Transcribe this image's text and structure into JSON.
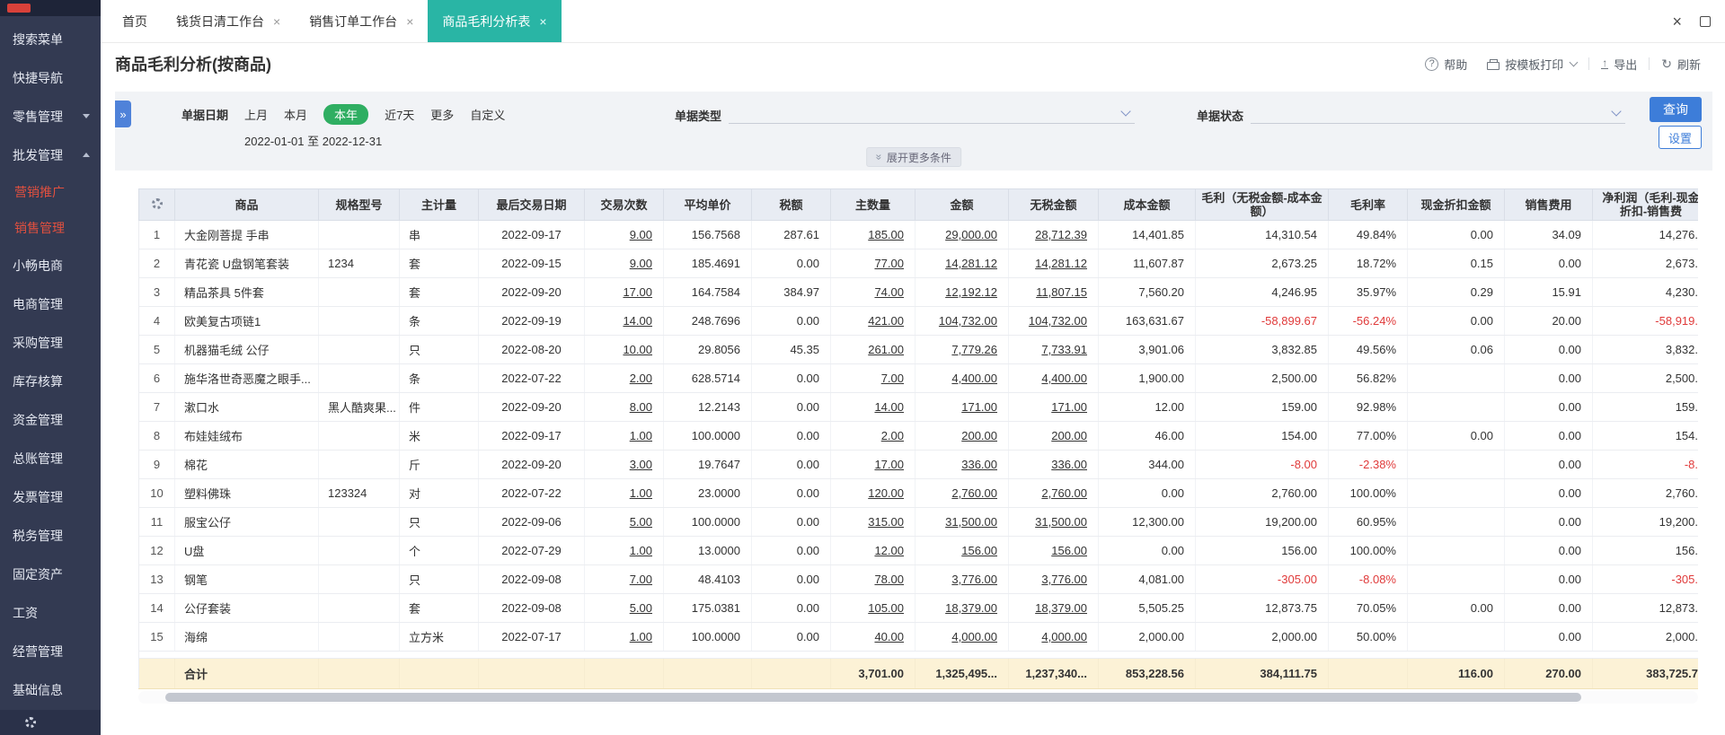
{
  "colors": {
    "accent_teal": "#29b5a5",
    "accent_blue": "#3d7dd9",
    "accent_green": "#2fae62",
    "negative_red": "#e03a3a",
    "sidebar_bg": "#333a52",
    "sidebar_highlight": "#e2503f",
    "summary_row_bg": "#fcf2d6",
    "header_row_bg": "#e8ecf3"
  },
  "icons": {
    "help": "?",
    "close": "×",
    "collapse": "»",
    "expand_more": "»",
    "export": "↑",
    "refresh": "↻"
  },
  "sidebar": {
    "items": [
      {
        "label": "搜索菜单",
        "type": "item"
      },
      {
        "label": "快捷导航",
        "type": "item"
      },
      {
        "label": "零售管理",
        "type": "group",
        "arrow": "down"
      },
      {
        "label": "批发管理",
        "type": "group",
        "arrow": "up"
      },
      {
        "label": "营销推广",
        "type": "sub"
      },
      {
        "label": "销售管理",
        "type": "sub"
      },
      {
        "label": "小畅电商",
        "type": "item"
      },
      {
        "label": "电商管理",
        "type": "item"
      },
      {
        "label": "采购管理",
        "type": "item"
      },
      {
        "label": "库存核算",
        "type": "item"
      },
      {
        "label": "资金管理",
        "type": "item"
      },
      {
        "label": "总账管理",
        "type": "item"
      },
      {
        "label": "发票管理",
        "type": "item"
      },
      {
        "label": "税务管理",
        "type": "item"
      },
      {
        "label": "固定资产",
        "type": "item"
      },
      {
        "label": "工资",
        "type": "item"
      },
      {
        "label": "经营管理",
        "type": "item"
      },
      {
        "label": "基础信息",
        "type": "item"
      }
    ]
  },
  "tabs": [
    {
      "label": "首页",
      "closable": false,
      "active": false
    },
    {
      "label": "钱货日清工作台",
      "closable": true,
      "active": false
    },
    {
      "label": "销售订单工作台",
      "closable": true,
      "active": false
    },
    {
      "label": "商品毛利分析表",
      "closable": true,
      "active": true
    }
  ],
  "page": {
    "title": "商品毛利分析(按商品)",
    "actions": [
      {
        "label": "帮助",
        "icon": "help"
      },
      {
        "label": "按模板打印",
        "icon": "print",
        "caret": true
      },
      {
        "label": "导出",
        "icon": "export"
      },
      {
        "label": "刷新",
        "icon": "refresh"
      }
    ]
  },
  "filters": {
    "date_label": "单据日期",
    "date_options": [
      "上月",
      "本月",
      "本年",
      "近7天",
      "更多",
      "自定义"
    ],
    "date_selected": "本年",
    "date_range": "2022-01-01 至 2022-12-31",
    "type_label": "单据类型",
    "status_label": "单据状态",
    "query_button": "查询",
    "settings_button": "设置",
    "expand_more": "展开更多条件"
  },
  "table": {
    "columns": [
      "商品",
      "规格型号",
      "主计量",
      "最后交易日期",
      "交易次数",
      "平均单价",
      "税额",
      "主数量",
      "金额",
      "无税金额",
      "成本金额",
      "毛利（无税金额-成本金额）",
      "毛利率",
      "现金折扣金额",
      "销售费用",
      "净利润（毛利-现金折扣-销售费"
    ],
    "rows": [
      [
        "1",
        "大金刚菩提 手串",
        "",
        "串",
        "2022-09-17",
        "9.00",
        "156.7568",
        "287.61",
        "185.00",
        "29,000.00",
        "28,712.39",
        "14,401.85",
        "14,310.54",
        "49.84%",
        "0.00",
        "34.09",
        "14,276."
      ],
      [
        "2",
        "青花瓷 U盘钢笔套装",
        "1234",
        "套",
        "2022-09-15",
        "9.00",
        "185.4691",
        "0.00",
        "77.00",
        "14,281.12",
        "14,281.12",
        "11,607.87",
        "2,673.25",
        "18.72%",
        "0.15",
        "0.00",
        "2,673."
      ],
      [
        "3",
        "精品茶具 5件套",
        "",
        "套",
        "2022-09-20",
        "17.00",
        "164.7584",
        "384.97",
        "74.00",
        "12,192.12",
        "11,807.15",
        "7,560.20",
        "4,246.95",
        "35.97%",
        "0.29",
        "15.91",
        "4,230."
      ],
      [
        "4",
        "欧美复古项链1",
        "",
        "条",
        "2022-09-19",
        "14.00",
        "248.7696",
        "0.00",
        "421.00",
        "104,732.00",
        "104,732.00",
        "163,631.67",
        "-58,899.67",
        "-56.24%",
        "0.00",
        "20.00",
        "-58,919."
      ],
      [
        "5",
        "机器猫毛绒 公仔",
        "",
        "只",
        "2022-08-20",
        "10.00",
        "29.8056",
        "45.35",
        "261.00",
        "7,779.26",
        "7,733.91",
        "3,901.06",
        "3,832.85",
        "49.56%",
        "0.06",
        "0.00",
        "3,832."
      ],
      [
        "6",
        "施华洛世奇恶魔之眼手...",
        "",
        "条",
        "2022-07-22",
        "2.00",
        "628.5714",
        "0.00",
        "7.00",
        "4,400.00",
        "4,400.00",
        "1,900.00",
        "2,500.00",
        "56.82%",
        "",
        "0.00",
        "2,500."
      ],
      [
        "7",
        "漱口水",
        "黑人酷爽果...",
        "件",
        "2022-09-20",
        "8.00",
        "12.2143",
        "0.00",
        "14.00",
        "171.00",
        "171.00",
        "12.00",
        "159.00",
        "92.98%",
        "",
        "0.00",
        "159."
      ],
      [
        "8",
        "布娃娃绒布",
        "",
        "米",
        "2022-09-17",
        "1.00",
        "100.0000",
        "0.00",
        "2.00",
        "200.00",
        "200.00",
        "46.00",
        "154.00",
        "77.00%",
        "0.00",
        "0.00",
        "154."
      ],
      [
        "9",
        "棉花",
        "",
        "斤",
        "2022-09-20",
        "3.00",
        "19.7647",
        "0.00",
        "17.00",
        "336.00",
        "336.00",
        "344.00",
        "-8.00",
        "-2.38%",
        "",
        "0.00",
        "-8."
      ],
      [
        "10",
        "塑料佛珠",
        "123324",
        "对",
        "2022-07-22",
        "1.00",
        "23.0000",
        "0.00",
        "120.00",
        "2,760.00",
        "2,760.00",
        "0.00",
        "2,760.00",
        "100.00%",
        "",
        "0.00",
        "2,760."
      ],
      [
        "11",
        "服宝公仔",
        "",
        "只",
        "2022-09-06",
        "5.00",
        "100.0000",
        "0.00",
        "315.00",
        "31,500.00",
        "31,500.00",
        "12,300.00",
        "19,200.00",
        "60.95%",
        "",
        "0.00",
        "19,200."
      ],
      [
        "12",
        "U盘",
        "",
        "个",
        "2022-07-29",
        "1.00",
        "13.0000",
        "0.00",
        "12.00",
        "156.00",
        "156.00",
        "0.00",
        "156.00",
        "100.00%",
        "",
        "0.00",
        "156."
      ],
      [
        "13",
        "钢笔",
        "",
        "只",
        "2022-09-08",
        "7.00",
        "48.4103",
        "0.00",
        "78.00",
        "3,776.00",
        "3,776.00",
        "4,081.00",
        "-305.00",
        "-8.08%",
        "",
        "0.00",
        "-305."
      ],
      [
        "14",
        "公仔套装",
        "",
        "套",
        "2022-09-08",
        "5.00",
        "175.0381",
        "0.00",
        "105.00",
        "18,379.00",
        "18,379.00",
        "5,505.25",
        "12,873.75",
        "70.05%",
        "0.00",
        "0.00",
        "12,873."
      ],
      [
        "15",
        "海绵",
        "",
        "立方米",
        "2022-07-17",
        "1.00",
        "100.0000",
        "0.00",
        "40.00",
        "4,000.00",
        "4,000.00",
        "2,000.00",
        "2,000.00",
        "50.00%",
        "",
        "0.00",
        "2,000."
      ]
    ],
    "summary": [
      "",
      "合计",
      "",
      "",
      "",
      "",
      "",
      "",
      "3,701.00",
      "1,325,495...",
      "1,237,340...",
      "853,228.56",
      "384,111.75",
      "",
      "116.00",
      "270.00",
      "383,725.7"
    ]
  }
}
